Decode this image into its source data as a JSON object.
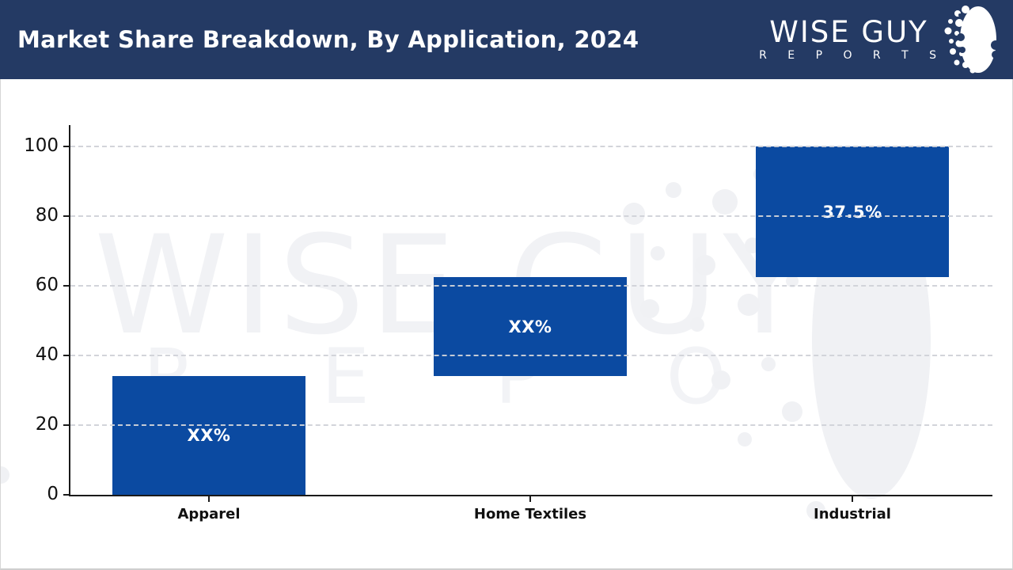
{
  "header": {
    "title": "Market Share Breakdown, By Application, 2024",
    "bg_color": "#243a64",
    "logo": {
      "line1": "WISE GUY",
      "line2": "R E P O R T S"
    }
  },
  "watermark": {
    "line1": "WISE GUY",
    "line2": "R E P O R T S"
  },
  "chart_data": {
    "type": "bar",
    "subtype": "floating-waterfall",
    "title": "Market Share Breakdown, By Application, 2024",
    "categories": [
      "Apparel",
      "Home Textiles",
      "Industrial"
    ],
    "series": [
      {
        "name": "Market Share %",
        "segments": [
          {
            "category": "Apparel",
            "start": 0,
            "end": 34,
            "label": "XX%"
          },
          {
            "category": "Home Textiles",
            "start": 34,
            "end": 62.5,
            "label": "XX%"
          },
          {
            "category": "Industrial",
            "start": 62.5,
            "end": 100,
            "label": "37.5%"
          }
        ]
      }
    ],
    "xlabel": "",
    "ylabel": "",
    "ylim": [
      0,
      100
    ],
    "yticks": [
      0,
      20,
      40,
      60,
      80,
      100
    ],
    "grid": "horizontal-dashed",
    "legend": "none",
    "bar_color": "#0b4aa1",
    "bar_label_color": "#ffffff",
    "axis_color": "#1a1a1a",
    "gridline_color": "#d4d6dc"
  }
}
